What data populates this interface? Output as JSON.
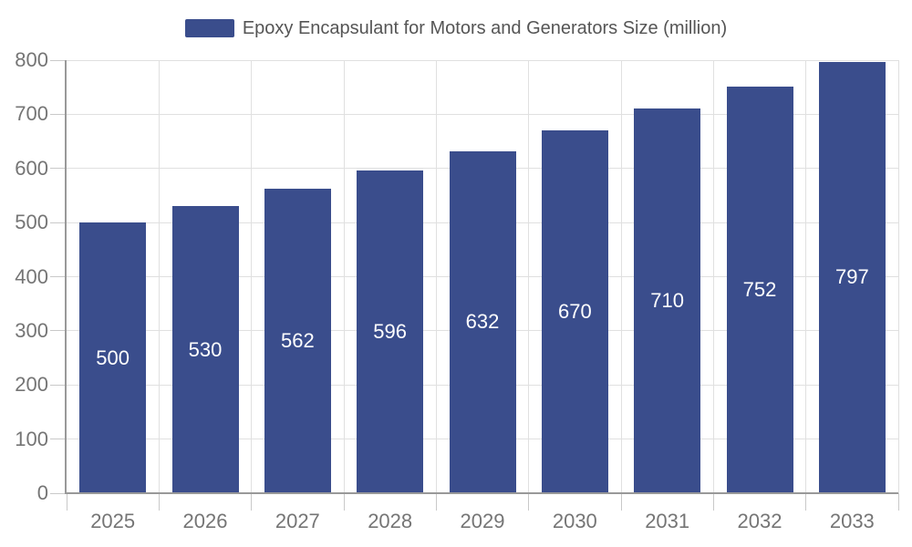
{
  "legend": {
    "label": "Epoxy Encapsulant for Motors and Generators Size (million)"
  },
  "chart_data": {
    "type": "bar",
    "title": "Epoxy Encapsulant for Motors and Generators Size (million)",
    "legend_entries": [
      "Epoxy Encapsulant for Motors and Generators Size (million)"
    ],
    "legend_position": "top-center",
    "categories": [
      "2025",
      "2026",
      "2027",
      "2028",
      "2029",
      "2030",
      "2031",
      "2032",
      "2033"
    ],
    "values": [
      500,
      530,
      562,
      596,
      632,
      670,
      710,
      752,
      797
    ],
    "value_labels_shown": true,
    "xlabel": "",
    "ylabel": "",
    "ylim": [
      0,
      800
    ],
    "ytick_step": 100,
    "grid": true,
    "colors": {
      "bar": "#3A4D8C",
      "value_label": "#FFFFFF",
      "grid_line": "#E0E0E0",
      "axis_line": "#999999",
      "tick_mark": "#C9C9C9",
      "tick_label": "#757575",
      "legend_text": "#555555",
      "background": "#FFFFFF"
    }
  }
}
